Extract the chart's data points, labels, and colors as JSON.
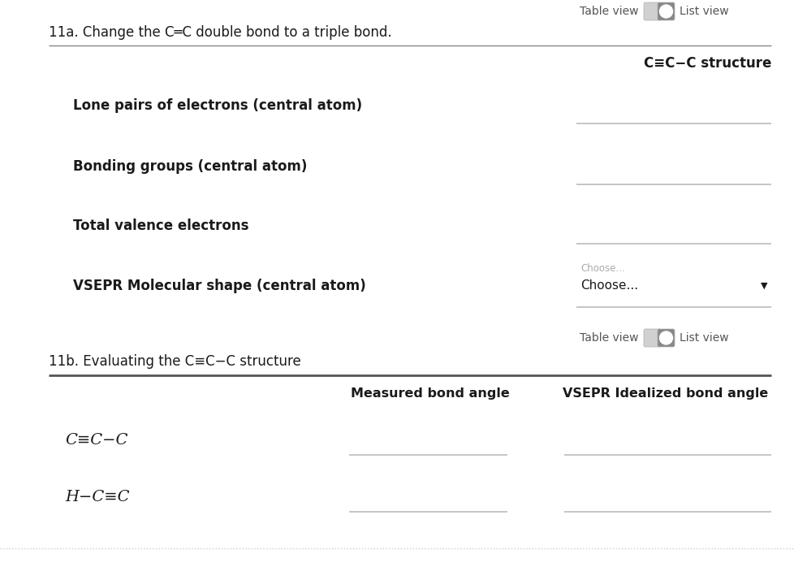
{
  "bg_color": "#ffffff",
  "white": "#ffffff",
  "dark_text": "#1a1a1a",
  "gray_text": "#aaaaaa",
  "medium_text": "#555555",
  "line_color": "#bbbbbb",
  "header_line_color": "#333333",
  "bottom_line_color": "#cccccc",
  "top_toggle_label_left": "Table view",
  "top_toggle_label_right": "List view",
  "question_11a": "11a. Change the C═C double bond to a triple bond.",
  "col_header_label": "C≡C−C structure",
  "rows": [
    "Lone pairs of electrons (central atom)",
    "Bonding groups (central atom)",
    "Total valence electrons"
  ],
  "vsepr_label": "VSEPR Molecular shape (central atom)",
  "question_11b": "11b. Evaluating the C≡C−C structure",
  "table_header_measured": "Measured bond angle",
  "table_header_vsepr": "VSEPR Idealized bond angle",
  "table_row_labels": [
    "C≡C−C",
    "H−C≡C"
  ]
}
